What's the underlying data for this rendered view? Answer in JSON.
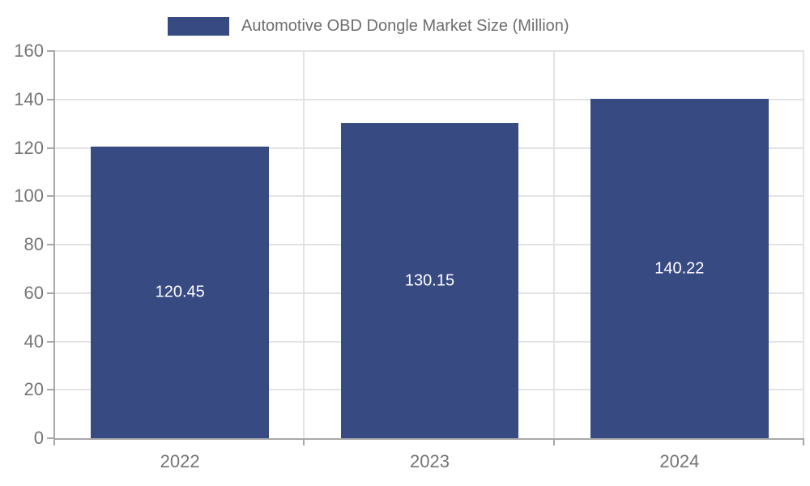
{
  "chart_data": {
    "type": "bar",
    "title": "Automotive OBD Dongle Market Size (Million)",
    "legend": {
      "position": "top",
      "entries": [
        "Automotive OBD Dongle Market Size (Million)"
      ]
    },
    "categories": [
      "2022",
      "2023",
      "2024"
    ],
    "series": [
      {
        "name": "Automotive OBD Dongle Market Size (Million)",
        "values": [
          120.45,
          130.15,
          140.22
        ],
        "value_labels": [
          "120.45",
          "130.15",
          "140.22"
        ]
      }
    ],
    "xlabel": "",
    "ylabel": "",
    "ylim": [
      0,
      160
    ],
    "yticks": [
      0,
      20,
      40,
      60,
      80,
      100,
      120,
      140,
      160
    ],
    "grid": true,
    "bar_width_fraction": 0.713,
    "colors": {
      "bar": "#374a82",
      "value_label_text": "#ffffff",
      "axis_text": "#757575",
      "legend_text": "#6e6e6e",
      "gridline": "#e3e3e3",
      "axis_line": "#a8a8a8",
      "tick_mark": "#a8a8a8",
      "background": "#ffffff"
    }
  }
}
